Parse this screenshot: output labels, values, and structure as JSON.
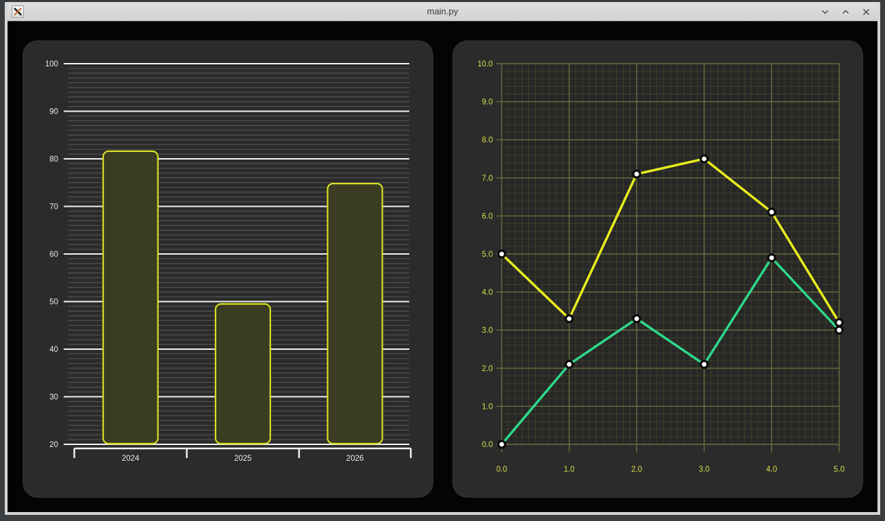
{
  "window": {
    "title": "main.py",
    "icon": "x11-logo-icon",
    "controls": [
      {
        "name": "minimize",
        "glyph": "v"
      },
      {
        "name": "maximize",
        "glyph": "^"
      },
      {
        "name": "close",
        "glyph": "x"
      }
    ]
  },
  "colors": {
    "frame_outer": "#3b3e40",
    "frame_light": "#d6d6d6",
    "titlebar_bg": "#d9d9d9",
    "title_text": "#3a3a3a",
    "content_bg": "#040404",
    "panel_bg": "#2b2b2b",
    "accent_yellow": "#e8ee1d",
    "accent_green": "#2dd98a"
  },
  "chart_data": [
    {
      "type": "bar",
      "title": "",
      "categories": [
        "2024",
        "2025",
        "2026"
      ],
      "values": [
        81.6,
        49.5,
        74.8
      ],
      "ylim": [
        20,
        100
      ],
      "yticks": [
        20,
        30,
        40,
        50,
        60,
        70,
        80,
        90,
        100
      ],
      "yticklabels": [
        "20",
        "30",
        "40",
        "50",
        "60",
        "70",
        "80",
        "90",
        "100"
      ],
      "minor_step": 1,
      "grid": "on",
      "legend": "none",
      "bar_fill": "#3a3d22",
      "bar_stroke": "#d9e023",
      "grid_major": "#f2f2f2",
      "grid_minor": "#8a8a8a",
      "axis_color": "#f0f0f0",
      "label_color": "#e9e9e9"
    },
    {
      "type": "line",
      "title": "",
      "x": [
        0,
        1,
        2,
        3,
        4,
        5
      ],
      "series": [
        {
          "name": "yellow-series",
          "color": "#e8ee1d",
          "values": [
            5.0,
            3.3,
            7.1,
            7.5,
            6.1,
            3.2
          ]
        },
        {
          "name": "green-series",
          "color": "#2dd98a",
          "values": [
            0.0,
            2.1,
            3.3,
            2.1,
            4.9,
            3.0
          ]
        }
      ],
      "xlim": [
        0,
        5
      ],
      "ylim": [
        0,
        10
      ],
      "xticks": [
        0,
        1,
        2,
        3,
        4,
        5
      ],
      "xticklabels": [
        "0.0",
        "1.0",
        "2.0",
        "3.0",
        "4.0",
        "5.0"
      ],
      "yticks": [
        0,
        1,
        2,
        3,
        4,
        5,
        6,
        7,
        8,
        9,
        10
      ],
      "yticklabels": [
        "0.0",
        "1.0",
        "2.0",
        "3.0",
        "4.0",
        "5.0",
        "6.0",
        "7.0",
        "8.0",
        "9.0",
        "10.0"
      ],
      "x_minor": 0.1,
      "y_minor": 0.2,
      "grid": "on",
      "legend": "none",
      "plot_bg": "#272727",
      "grid_major": "#68703c",
      "grid_minor": "#3c402a",
      "label_color": "#d6de4a",
      "marker_fill": "#ffffff",
      "marker_stroke": "#0b0b0b"
    }
  ]
}
